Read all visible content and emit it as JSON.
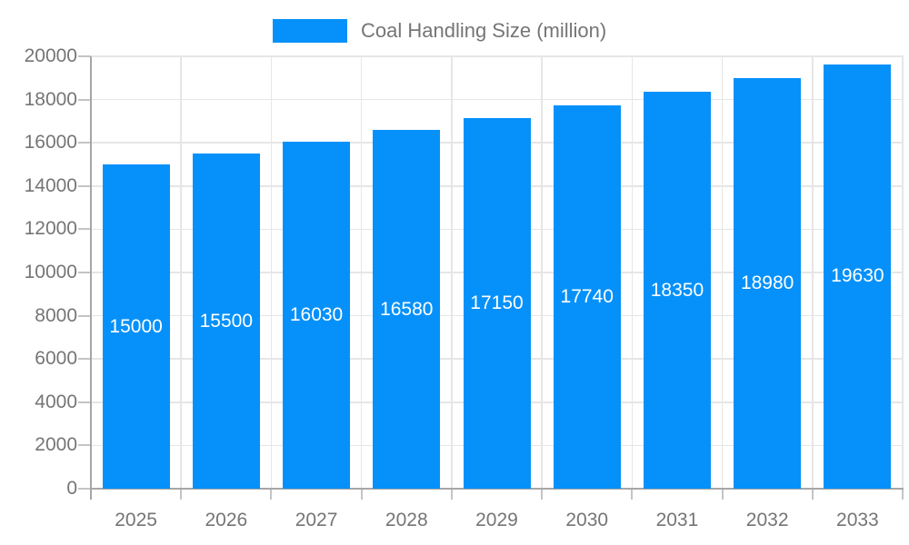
{
  "legend": {
    "label": "Coal Handling Size (million)"
  },
  "colors": {
    "bar": "#0691fa",
    "bar_label": "#ffffff",
    "grid": "#e6e6e6",
    "axis": "#a6a6a6",
    "tick": "#c4c4c4",
    "axis_text": "#757575",
    "background": "#ffffff"
  },
  "chart_data": {
    "type": "bar",
    "title": "Coal Handling Size (million)",
    "series_name": "Coal Handling Size (million)",
    "categories": [
      "2025",
      "2026",
      "2027",
      "2028",
      "2029",
      "2030",
      "2031",
      "2032",
      "2033"
    ],
    "values": [
      15000,
      15500,
      16030,
      16580,
      17150,
      17740,
      18350,
      18980,
      19630
    ],
    "bar_labels": [
      "15000",
      "15500",
      "16030",
      "16580",
      "17150",
      "17740",
      "18350",
      "18980",
      "19630"
    ],
    "xlabel": "",
    "ylabel": "",
    "ylim": [
      0,
      20000
    ],
    "yticks": [
      0,
      2000,
      4000,
      6000,
      8000,
      10000,
      12000,
      14000,
      16000,
      18000,
      20000
    ],
    "grid": true,
    "grid_vertical": true,
    "legend_position": "top-center",
    "bar_label_position": "center"
  }
}
